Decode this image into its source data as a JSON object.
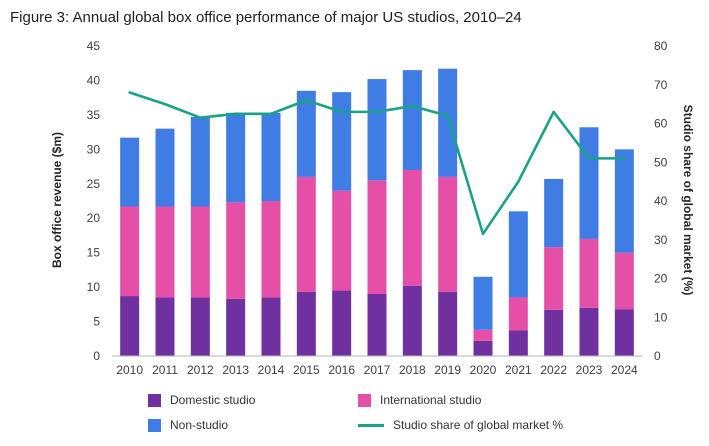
{
  "title": "Figure 3: Annual global box office performance of major US studios, 2010–24",
  "chart_data": {
    "type": "bar",
    "subtype": "stacked-bar-with-line",
    "categories": [
      "2010",
      "2011",
      "2012",
      "2013",
      "2014",
      "2015",
      "2016",
      "2017",
      "2018",
      "2019",
      "2020",
      "2021",
      "2022",
      "2023",
      "2024"
    ],
    "series": [
      {
        "name": "Domestic studio",
        "type": "bar",
        "axis": "left",
        "color": "#7030a0",
        "values": [
          8.7,
          8.5,
          8.5,
          8.3,
          8.5,
          9.3,
          9.5,
          9.0,
          10.2,
          9.3,
          2.2,
          3.7,
          6.7,
          7.0,
          6.8
        ]
      },
      {
        "name": "International studio",
        "type": "bar",
        "axis": "left",
        "color": "#e64fa8",
        "values": [
          13.0,
          13.2,
          13.2,
          14.0,
          14.0,
          16.7,
          14.5,
          16.5,
          16.8,
          16.7,
          1.6,
          4.8,
          9.1,
          10.0,
          8.2
        ]
      },
      {
        "name": "Non-studio",
        "type": "bar",
        "axis": "left",
        "color": "#3f7de4",
        "values": [
          10.0,
          11.3,
          13.0,
          13.0,
          12.8,
          12.5,
          14.3,
          14.7,
          14.5,
          15.7,
          7.7,
          12.5,
          9.9,
          16.2,
          15.0
        ]
      },
      {
        "name": "Studio share of global market %",
        "type": "line",
        "axis": "right",
        "color": "#1aa289",
        "values": [
          68,
          65,
          61.5,
          62.5,
          62.5,
          66,
          63,
          63,
          64.5,
          62,
          31.5,
          45,
          63,
          51,
          51
        ]
      }
    ],
    "ylabel_left": "Box office revenue ($m)",
    "ylabel_right": "Studio share of global market (%)",
    "ylim_left": [
      0,
      45
    ],
    "ytick_step_left": 5,
    "ylim_right": [
      0,
      80
    ],
    "ytick_step_right": 10,
    "grid": false,
    "legend_position": "bottom",
    "axis_line_color": "#b3b3b3"
  },
  "legend": {
    "items": [
      {
        "label": "Domestic studio",
        "swatch": "square",
        "color": "#7030a0"
      },
      {
        "label": "International studio",
        "swatch": "square",
        "color": "#e64fa8"
      },
      {
        "label": "Non-studio",
        "swatch": "square",
        "color": "#3f7de4"
      },
      {
        "label": "Studio share of global market %",
        "swatch": "line",
        "color": "#1aa289"
      }
    ]
  }
}
